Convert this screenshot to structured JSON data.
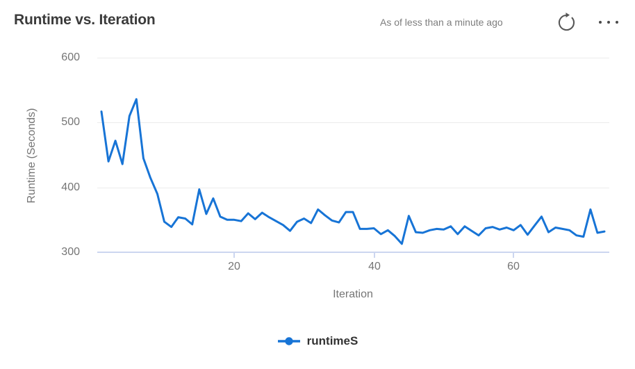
{
  "header": {
    "title": "Runtime vs. Iteration",
    "freshness": "As of less than a minute ago",
    "refresh_icon": "refresh-icon",
    "more_icon": "ellipsis-icon"
  },
  "chart_data": {
    "type": "line",
    "title": "Runtime vs. Iteration",
    "xlabel": "Iteration",
    "ylabel": "Runtime (Seconds)",
    "x_ticks": [
      "20",
      "40",
      "60"
    ],
    "y_ticks": [
      "600",
      "500",
      "400",
      "300"
    ],
    "xlim": [
      0.4,
      73.7
    ],
    "ylim": [
      300,
      600
    ],
    "grid": "horizontal gridlines at 400/500/600, light blue baseline at 300",
    "line_color": "#1774d6",
    "grid_color": "#ebebeb",
    "axis_color": "#ccd6f0",
    "legend_position": "bottom-center",
    "legend": [
      {
        "label": "runtimeS",
        "color": "#1774d6",
        "marker": "circle-on-line"
      }
    ],
    "series": [
      {
        "name": "runtimeS",
        "x_start": 1,
        "x_step": 1,
        "values": [
          517,
          440,
          472,
          436,
          510,
          536,
          445,
          415,
          390,
          347,
          339,
          354,
          352,
          343,
          397,
          359,
          383,
          355,
          350,
          350,
          348,
          360,
          351,
          361,
          354,
          348,
          342,
          333,
          347,
          352,
          345,
          366,
          357,
          349,
          346,
          362,
          362,
          336,
          336,
          337,
          328,
          334,
          325,
          313,
          356,
          331,
          330,
          334,
          336,
          335,
          340,
          328,
          340,
          333,
          326,
          337,
          339,
          335,
          338,
          334,
          342,
          327,
          341,
          355,
          331,
          338,
          336,
          334,
          326,
          324,
          366,
          330,
          332
        ]
      }
    ]
  }
}
